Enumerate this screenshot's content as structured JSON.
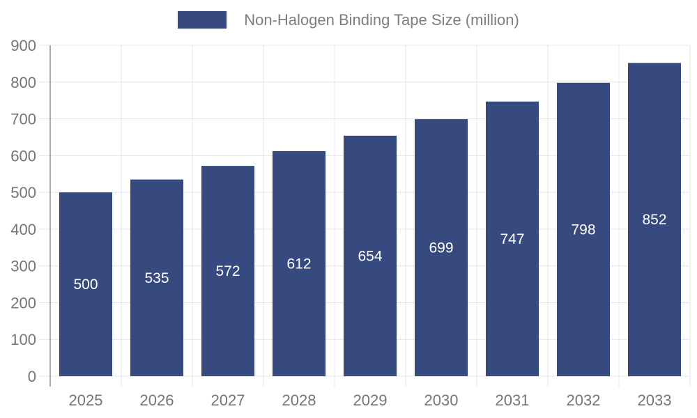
{
  "legend": {
    "label": "Non-Halogen Binding Tape Size (million)"
  },
  "chart_data": {
    "type": "bar",
    "title": "Non-Halogen Binding Tape Size (million)",
    "series_name": "Non-Halogen Binding Tape Size (million)",
    "categories": [
      "2025",
      "2026",
      "2027",
      "2028",
      "2029",
      "2030",
      "2031",
      "2032",
      "2033"
    ],
    "values": [
      500,
      535,
      572,
      612,
      654,
      699,
      747,
      798,
      852
    ],
    "xlabel": "",
    "ylabel": "",
    "ylim": [
      0,
      900
    ],
    "ytick_step": 100,
    "ytick_labels": [
      "0",
      "100",
      "200",
      "300",
      "400",
      "500",
      "600",
      "700",
      "800",
      "900"
    ],
    "grid": true,
    "legend_position": "top-center",
    "bar_color": "#374a80",
    "value_label_color": "#ffffff",
    "axis_label_color": "#757575",
    "gridline_color": "#e4e4e4",
    "axis_line_color": "#a8a8a8"
  }
}
